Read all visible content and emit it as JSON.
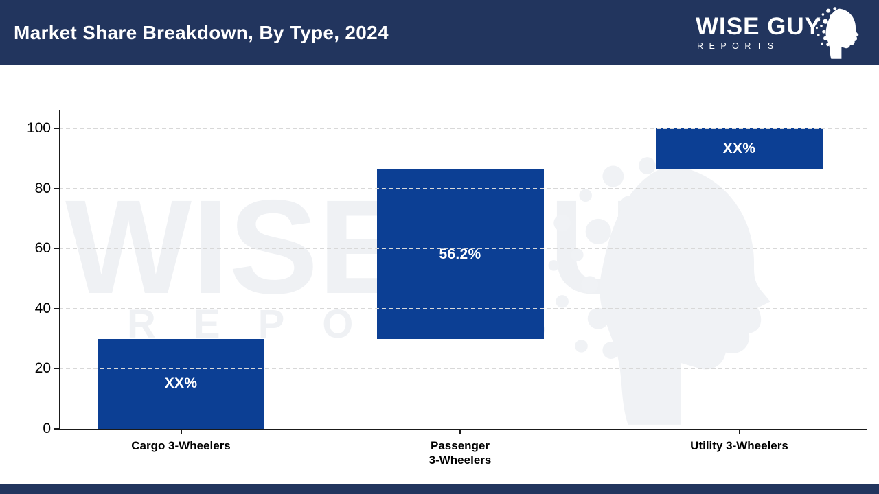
{
  "header": {
    "title": "Market Share Breakdown, By Type, 2024",
    "logo": {
      "line1": "WISE GUY",
      "line2": "REPORTS"
    }
  },
  "watermark": {
    "line1": "WISE GUY",
    "line2": "REPORTS"
  },
  "colors": {
    "header_bg": "#22355E",
    "footer_bg": "#22355E",
    "bar": "#0C3F94",
    "bar_label": "#FFFFFF",
    "grid": "#D8D8D8",
    "axis": "#1A1A1A",
    "watermark": "#EFF1F4"
  },
  "chart_data": {
    "type": "bar",
    "subtype": "waterfall-style floating range bars",
    "title": "Market Share Breakdown, By Type, 2024",
    "xlabel": "",
    "ylabel": "",
    "ylim": [
      0,
      100
    ],
    "yticks": [
      0,
      20,
      40,
      60,
      80,
      100
    ],
    "grid": "horizontal dashed gridlines drawn over bars",
    "legend": "none",
    "bar_color": "#0C3F94",
    "categories": [
      "Cargo 3-Wheelers",
      "Passenger\n3-Wheelers",
      "Utility 3-Wheelers"
    ],
    "segments": [
      {
        "category": "Cargo 3-Wheelers",
        "start": 0,
        "end": 30,
        "value_label": "XX%"
      },
      {
        "category": "Passenger 3-Wheelers",
        "start": 30,
        "end": 86.2,
        "value_label": "56.2%"
      },
      {
        "category": "Utility 3-Wheelers",
        "start": 86.2,
        "end": 100,
        "value_label": "XX%"
      }
    ]
  }
}
